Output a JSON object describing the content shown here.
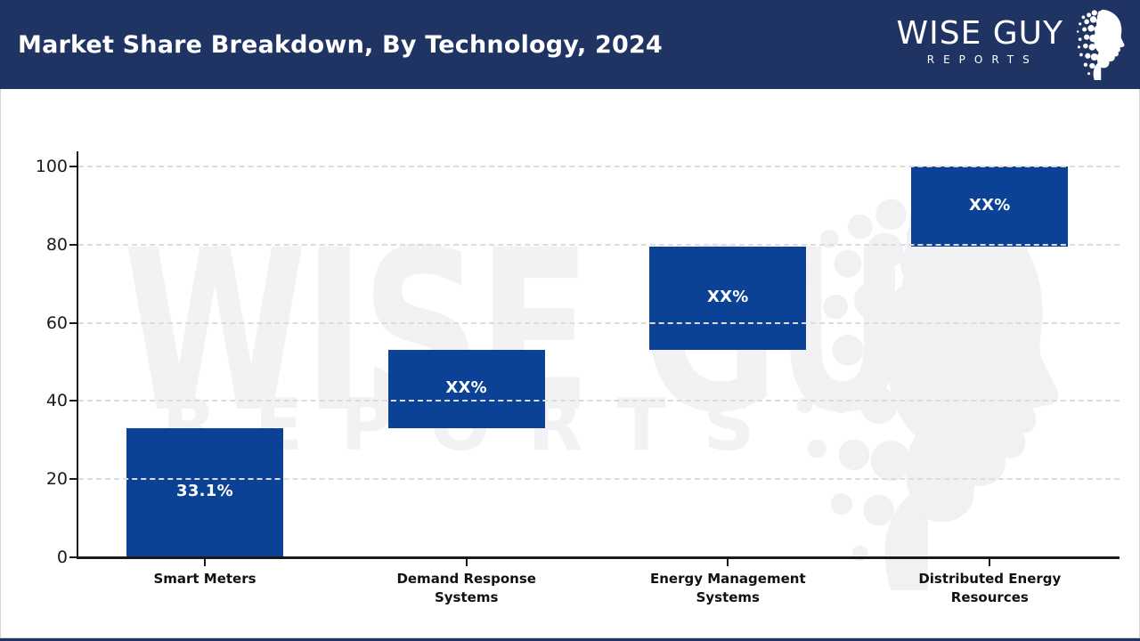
{
  "header": {
    "title": "Market Share Breakdown, By Technology, 2024",
    "logo": {
      "brand_line1": "WISE GUY",
      "brand_line2": "REPORTS"
    },
    "bg_color": "#1f3463"
  },
  "watermark": {
    "text_large": "WISE GUY",
    "text_small": "REPORTS"
  },
  "chart_data": {
    "type": "bar",
    "subtype": "waterfall",
    "title": "Market Share Breakdown, By Technology, 2024",
    "categories": [
      "Smart Meters",
      "Demand Response\nSystems",
      "Energy Management\nSystems",
      "Distributed Energy\nResources"
    ],
    "bars": [
      {
        "category": "Smart Meters",
        "start": 0,
        "end": 33.1,
        "label": "33.1%"
      },
      {
        "category": "Demand Response Systems",
        "start": 33.1,
        "end": 53.1,
        "label": "XX%"
      },
      {
        "category": "Energy Management Systems",
        "start": 53.1,
        "end": 79.5,
        "label": "XX%"
      },
      {
        "category": "Distributed Energy Resources",
        "start": 79.5,
        "end": 100,
        "label": "XX%"
      }
    ],
    "xlabel": "",
    "ylabel": "",
    "ylim": [
      0,
      105
    ],
    "yticks": [
      0,
      20,
      40,
      60,
      80,
      100
    ],
    "grid": "horizontal-dashed",
    "legend": "none",
    "bar_color": "#0c4295",
    "bar_label_color": "#ffffff",
    "grid_color": "#dcdcdc",
    "axis_color": "#1a1a1a"
  }
}
